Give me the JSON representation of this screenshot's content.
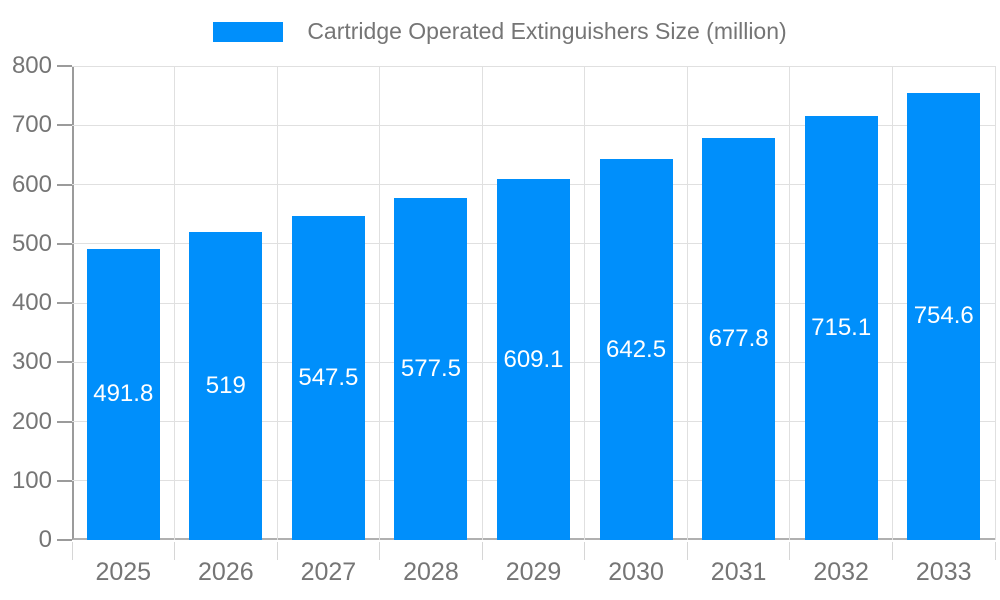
{
  "chart_data": {
    "type": "bar",
    "title": "",
    "categories": [
      "2025",
      "2026",
      "2027",
      "2028",
      "2029",
      "2030",
      "2031",
      "2032",
      "2033"
    ],
    "series": [
      {
        "name": "Cartridge Operated Extinguishers Size (million)",
        "values": [
          491.8,
          519,
          547.5,
          577.5,
          609.1,
          642.5,
          677.8,
          715.1,
          754.6
        ],
        "value_labels": [
          "491.8",
          "519",
          "547.5",
          "577.5",
          "609.1",
          "642.5",
          "677.8",
          "715.1",
          "754.6"
        ]
      }
    ],
    "xlabel": "",
    "ylabel": "",
    "ylim": [
      0,
      800
    ],
    "yticks": [
      0,
      100,
      200,
      300,
      400,
      500,
      600,
      700,
      800
    ],
    "grid": true,
    "legend_position": "top-center",
    "value_label_position": "inside-middle"
  },
  "colors": {
    "bar": "#008FFB",
    "value_label_text": "#ffffff",
    "axis_text": "#757575",
    "gridline": "#e0e0e0",
    "y_axis_line": "#9b9b9b",
    "x_axis_line": "#b0b0b0",
    "y_tick": "#9b9b9b",
    "x_tick": "#d6d6d6"
  }
}
